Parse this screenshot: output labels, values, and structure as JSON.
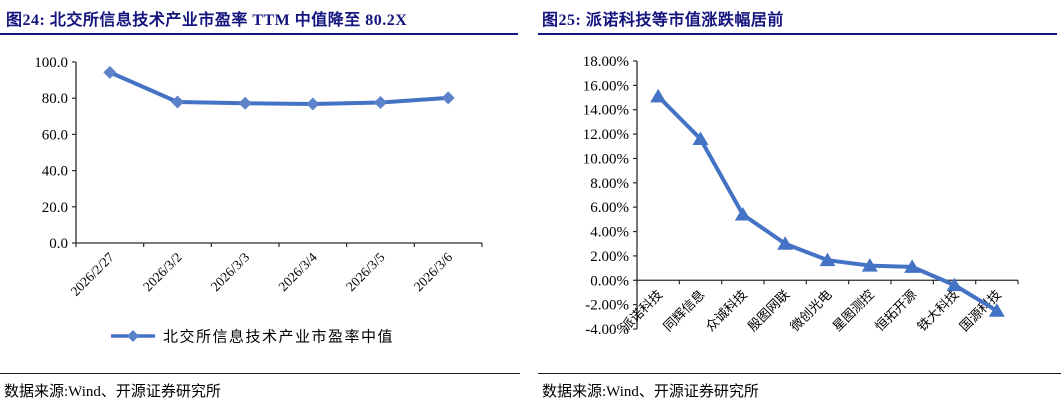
{
  "colors": {
    "title_navy": "#14147E",
    "axis_black": "#2b2b2b",
    "series_blue": "#4472C4",
    "marker_blue": "#5C83C9"
  },
  "sources": [
    "数据来源:Wind、开源证券研究所",
    "数据来源:Wind、开源证券研究所"
  ],
  "chart_data": [
    {
      "type": "line",
      "title": "图24: 北交所信息技术产业市盈率 TTM 中值降至 80.2X",
      "categories": [
        "2026/2/27",
        "2026/3/2",
        "2026/3/3",
        "2026/3/4",
        "2026/3/5",
        "2026/3/6"
      ],
      "series": [
        {
          "name": "北交所信息技术产业市盈率中值",
          "values": [
            94.3,
            77.9,
            77.2,
            76.8,
            77.6,
            80.2
          ]
        }
      ],
      "ylim": [
        0,
        100
      ],
      "ytick_step": 20,
      "yformat": "fixed1",
      "ytick_labels": [
        "0.0",
        "20.0",
        "40.0",
        "60.0",
        "80.0",
        "100.0"
      ],
      "marker": "diamond",
      "grid": false,
      "legend_position": "bottom",
      "line_color": "#4472C4",
      "marker_color": "#5C83C9"
    },
    {
      "type": "line",
      "title": "图25: 派诺科技等市值涨跌幅居前",
      "categories": [
        "派诺科技",
        "同辉信息",
        "众诚科技",
        "殷图网联",
        "微创光电",
        "星图测控",
        "恒拓开源",
        "铁大科技",
        "国源科技"
      ],
      "series": [
        {
          "name": "市值涨跌幅",
          "values": [
            15.1,
            11.6,
            5.4,
            3.0,
            1.65,
            1.2,
            1.1,
            -0.4,
            -2.5
          ]
        }
      ],
      "ylim": [
        -4,
        18
      ],
      "ytick_step": 2,
      "yformat": "percent2",
      "ytick_labels": [
        "-4.00%",
        "-2.00%",
        "0.00%",
        "2.00%",
        "4.00%",
        "6.00%",
        "8.00%",
        "10.00%",
        "12.00%",
        "14.00%",
        "16.00%",
        "18.00%"
      ],
      "marker": "triangle",
      "grid": false,
      "legend_position": "none",
      "line_color": "#4472C4",
      "marker_color": "#4472C4"
    }
  ]
}
